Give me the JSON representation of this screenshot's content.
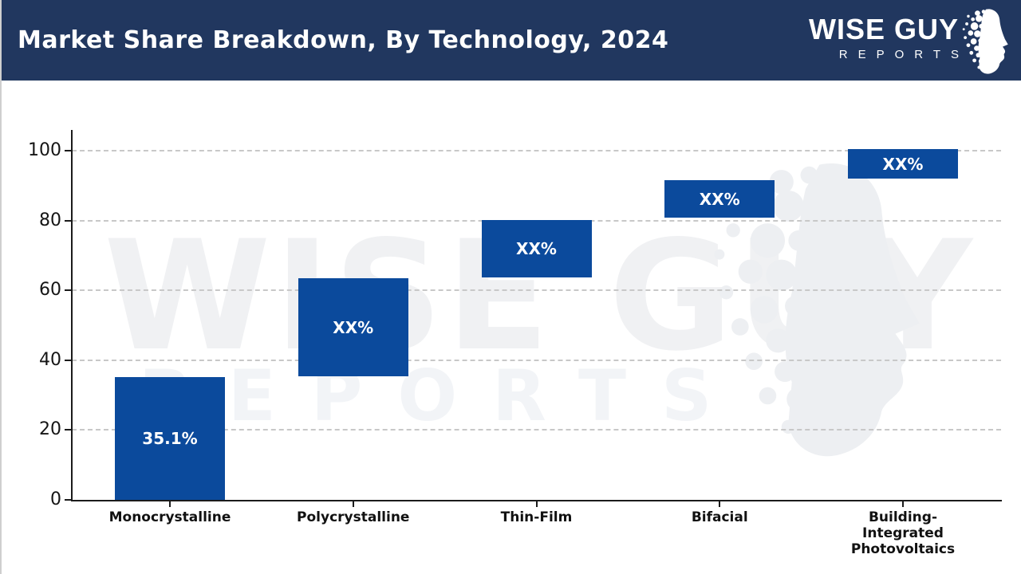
{
  "header": {
    "title": "Market Share Breakdown, By Technology, 2024",
    "logo": {
      "brand_line1": "WISE GUY",
      "brand_line2": "REPORTS"
    }
  },
  "watermark": {
    "line1": "WISE GUY",
    "line2": "REPORTS"
  },
  "chart_data": {
    "type": "bar",
    "subtype": "waterfall",
    "title": "Market Share Breakdown, By Technology, 2024",
    "xlabel": "",
    "ylabel": "",
    "ylim": [
      0,
      106
    ],
    "yticks": [
      0,
      20,
      40,
      60,
      80,
      100
    ],
    "grid": "horizontal-dashed",
    "legend": "none",
    "categories": [
      "Monocrystalline",
      "Polycrystalline",
      "Thin-Film",
      "Bifacial",
      "Building-Integrated Photovoltaics"
    ],
    "segments": [
      {
        "category": "Monocrystalline",
        "start": 0,
        "end": 35.1,
        "label": "35.1%"
      },
      {
        "category": "Polycrystalline",
        "start": 35.4,
        "end": 63.4,
        "label": "XX%"
      },
      {
        "category": "Thin-Film",
        "start": 63.8,
        "end": 80.1,
        "label": "XX%"
      },
      {
        "category": "Bifacial",
        "start": 80.8,
        "end": 91.5,
        "label": "XX%"
      },
      {
        "category": "Building-Integrated Photovoltaics",
        "start": 92.0,
        "end": 100.5,
        "label": "XX%"
      }
    ]
  },
  "colors": {
    "header_bg": "#21375f",
    "bar": "#0b4a9c",
    "bar_label": "#ffffff",
    "axis": "#1b1b1b",
    "gridline": "#c8c8c8",
    "watermark": "#f0f1f3",
    "page_border": "#cfcfcf"
  }
}
